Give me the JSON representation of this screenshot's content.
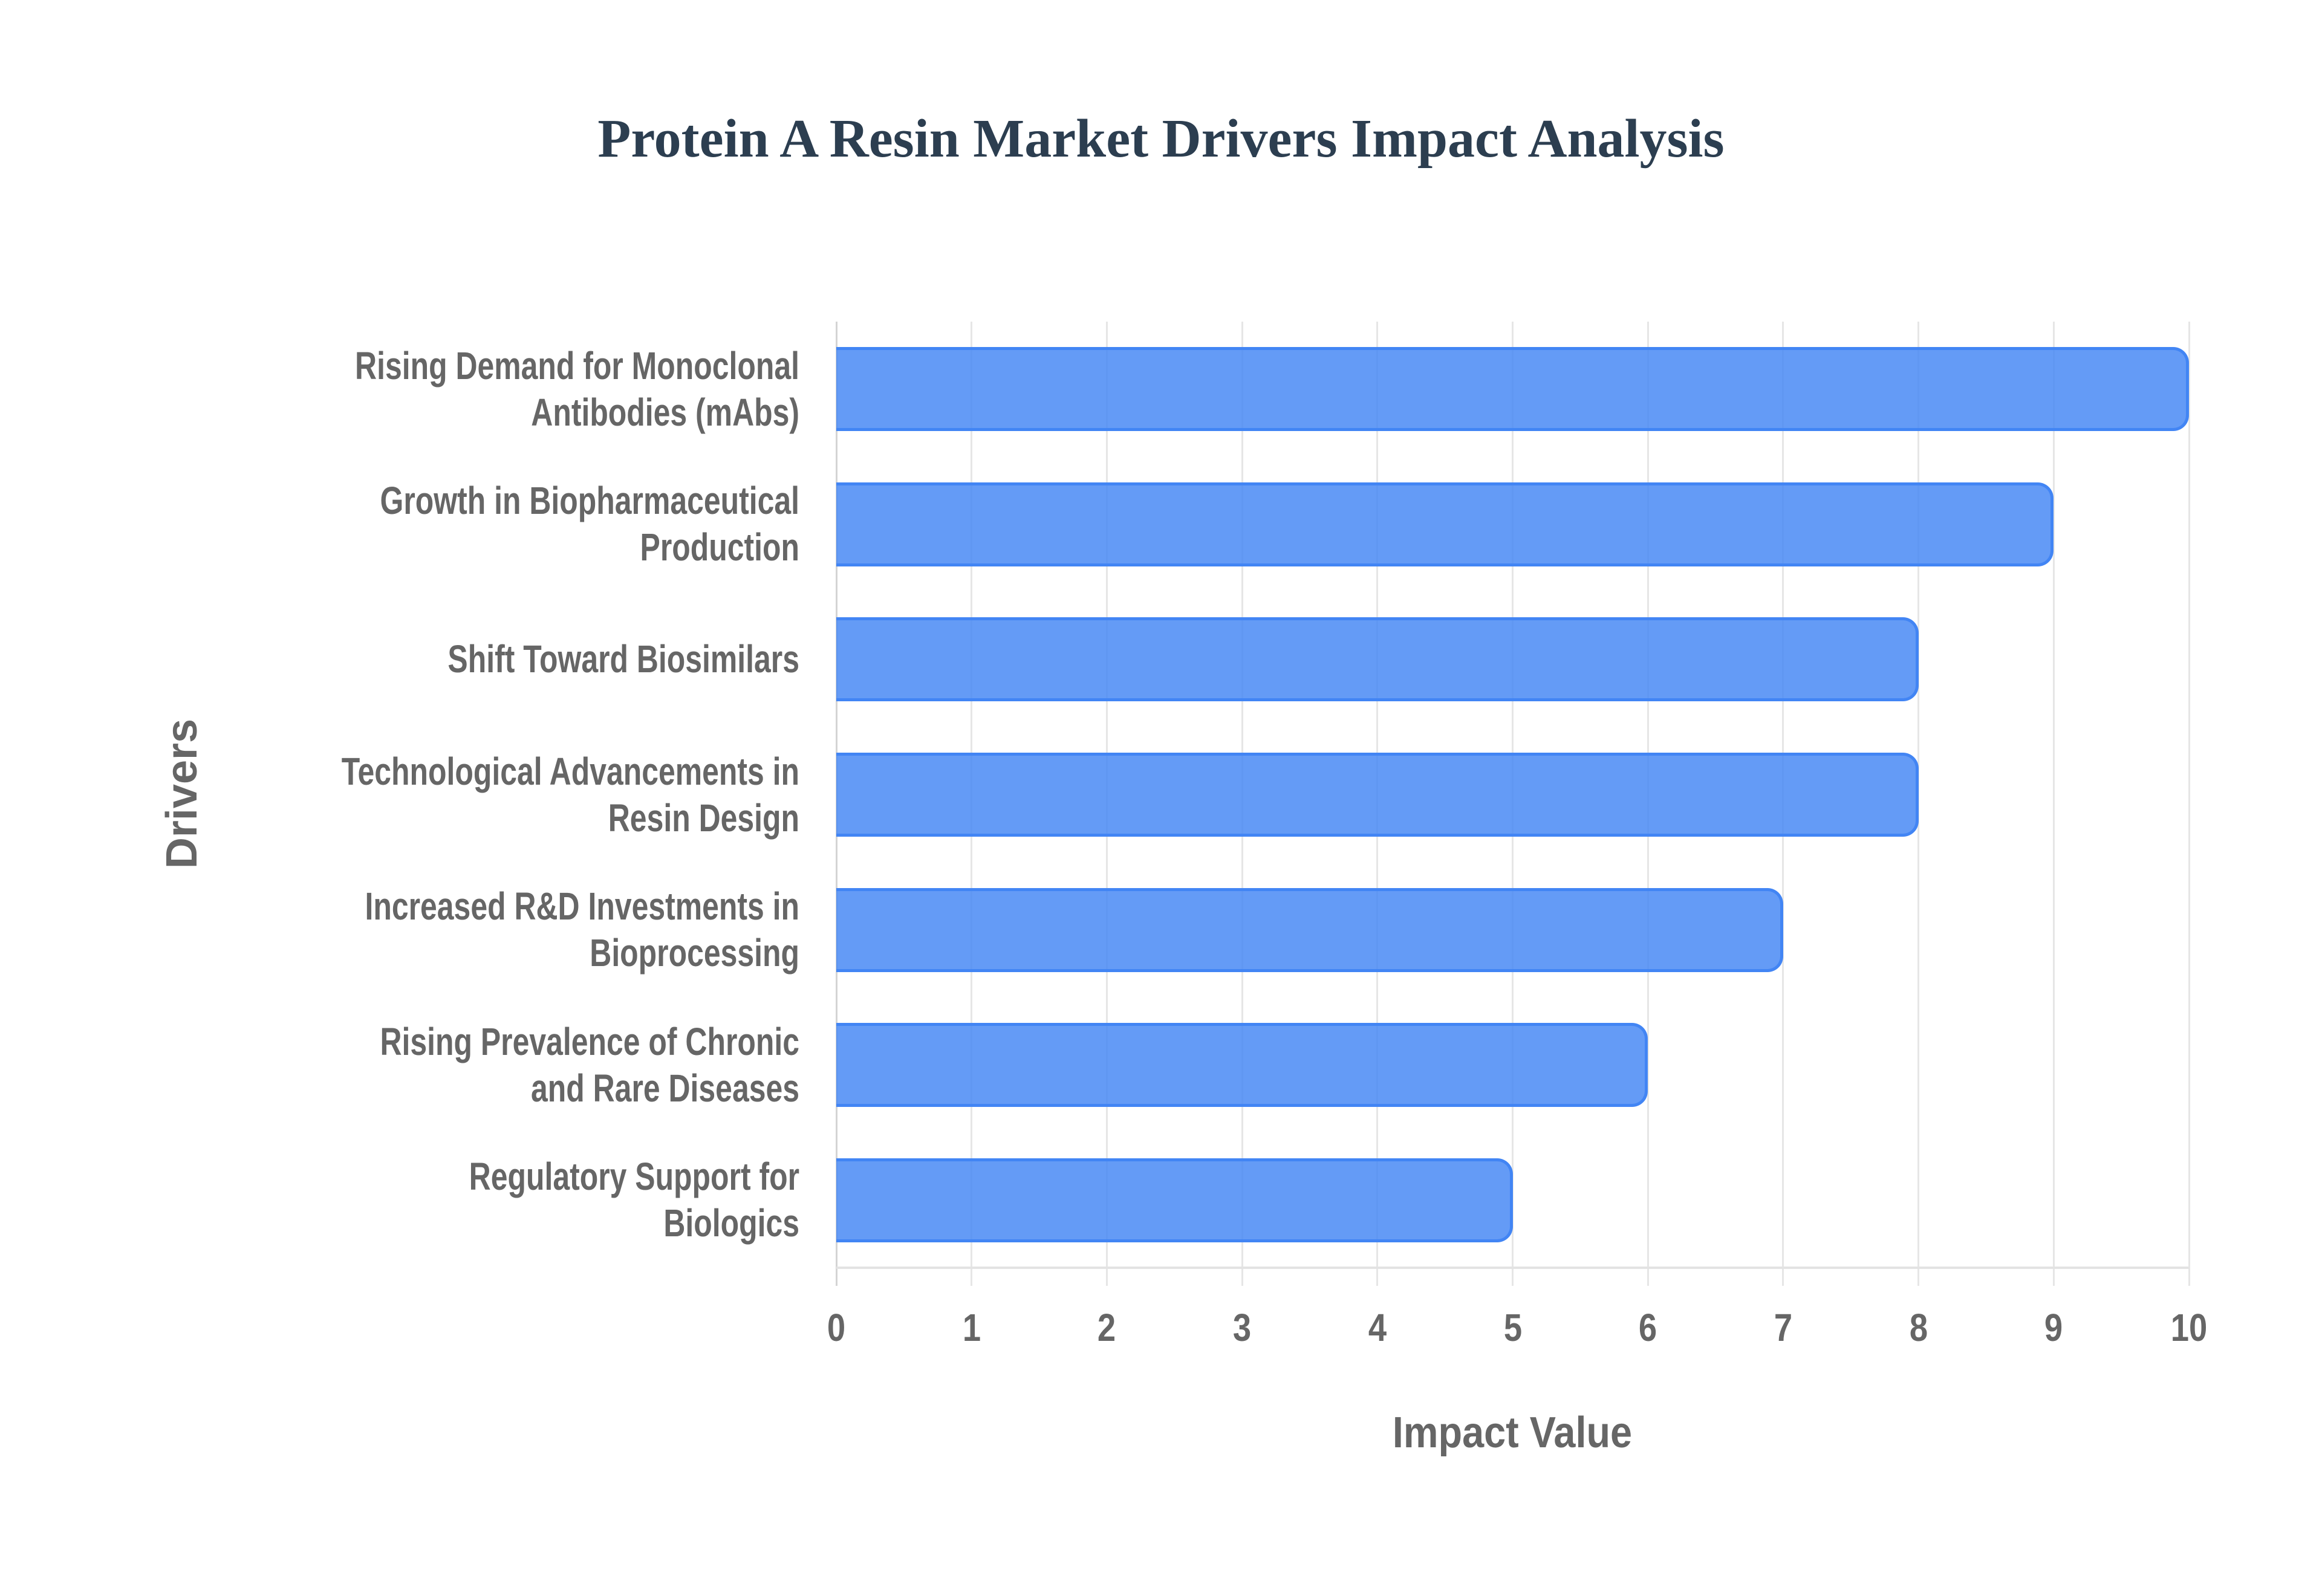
{
  "chart_data": {
    "type": "bar",
    "orientation": "horizontal",
    "title": "Protein A Resin Market Drivers Impact Analysis",
    "xlabel": "Impact Value",
    "ylabel": "Drivers",
    "xlim": [
      0,
      10
    ],
    "xticks": [
      "0",
      "1",
      "2",
      "3",
      "4",
      "5",
      "6",
      "7",
      "8",
      "9",
      "10"
    ],
    "grid": {
      "vertical": true,
      "horizontal": false
    },
    "legend": null,
    "categories": [
      "Rising Demand for Monoclonal Antibodies (mAbs)",
      "Growth in Biopharmaceutical Production",
      "Shift Toward Biosimilars",
      "Technological Advancements in Resin Design",
      "Increased R&D Investments in Bioprocessing",
      "Rising Prevalence of Chronic and Rare Diseases",
      "Regulatory Support for Biologics"
    ],
    "category_display_lines": [
      "Rising Demand for Monoclonal\nAntibodies (mAbs)",
      "Growth in Biopharmaceutical\nProduction",
      "Shift Toward Biosimilars",
      "Technological Advancements in\nResin Design",
      "Increased R&D Investments in\nBioprocessing",
      "Rising Prevalence of Chronic\nand Rare Diseases",
      "Regulatory Support for\nBiologics"
    ],
    "values": [
      10,
      9,
      8,
      8,
      7,
      6,
      5
    ],
    "series": [
      {
        "name": "Impact Value",
        "values": [
          10,
          9,
          8,
          8,
          7,
          6,
          5
        ],
        "fill_color": "#6199F5",
        "border_color": "#4285F4"
      }
    ]
  },
  "colors": {
    "title": "#2C3E50",
    "axis_text": "#666666",
    "bar_fill": "#6199F5",
    "bar_border": "#4285F4",
    "grid": "#E6E6E6",
    "background": "#FFFFFF"
  }
}
